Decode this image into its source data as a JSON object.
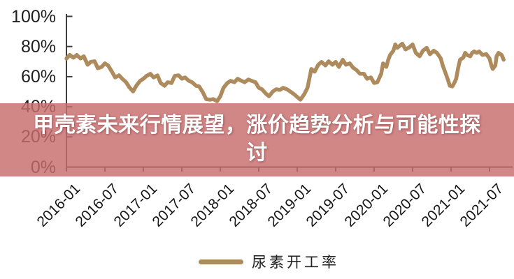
{
  "page": {
    "background": "#ffffff"
  },
  "banner": {
    "full_text": "甲壳素未来行情展望，涨价趋势分析与可能性探讨",
    "lines": [
      "甲壳素未来行情展望，涨价趋势分析与可能性探",
      "讨"
    ],
    "background_rgba": "rgba(200,109,109,0.82)",
    "text_color": "#ffffff"
  },
  "legend": {
    "label": "尿素开工率",
    "line_color": "#ae8b5d"
  },
  "colors": {
    "series_line": "#ae8b5d",
    "axis": "#3d3d3d",
    "tick_label": "#1f1f1f"
  },
  "chart_data": {
    "type": "line",
    "title": "",
    "xlabel": "",
    "ylabel": "",
    "grid": false,
    "legend_position": "bottom-center",
    "ylim": [
      0,
      100
    ],
    "y_tick_values": [
      0,
      20,
      40,
      60,
      80,
      100
    ],
    "y_tick_labels": [
      "0%",
      "20%",
      "40%",
      "60%",
      "80%",
      "100%"
    ],
    "x_tick_labels": [
      "2016-01",
      "2016-07",
      "2017-01",
      "2017-07",
      "2018-01",
      "2018-07",
      "2019-01",
      "2019-07",
      "2020-01",
      "2020-07",
      "2021-01",
      "2021-07"
    ],
    "x_unit": "months since 2016-01 (fractional)",
    "series": [
      {
        "name": "尿素开工率",
        "color": "#ae8b5d",
        "points": [
          [
            0,
            72
          ],
          [
            0.5,
            74.4
          ],
          [
            1.1,
            72.6
          ],
          [
            1.6,
            74.4
          ],
          [
            2.2,
            72.1
          ],
          [
            2.7,
            73.5
          ],
          [
            3.3,
            67.9
          ],
          [
            3.8,
            69.8
          ],
          [
            4.4,
            70.2
          ],
          [
            4.9,
            65.6
          ],
          [
            5.5,
            66.5
          ],
          [
            6,
            68.8
          ],
          [
            6.5,
            67.4
          ],
          [
            7.1,
            63.3
          ],
          [
            7.6,
            59.5
          ],
          [
            8.2,
            60.9
          ],
          [
            8.7,
            58.6
          ],
          [
            9.3,
            56.3
          ],
          [
            9.8,
            53
          ],
          [
            10.4,
            50.2
          ],
          [
            10.9,
            54
          ],
          [
            11.5,
            57.2
          ],
          [
            12,
            58.6
          ],
          [
            12.5,
            60.5
          ],
          [
            13.1,
            61.9
          ],
          [
            13.6,
            59.5
          ],
          [
            14.2,
            60.9
          ],
          [
            14.7,
            55.8
          ],
          [
            15.3,
            54
          ],
          [
            15.8,
            56.3
          ],
          [
            16.4,
            55.8
          ],
          [
            16.9,
            60.5
          ],
          [
            17.5,
            60.9
          ],
          [
            18,
            58.6
          ],
          [
            18.5,
            59.5
          ],
          [
            19.1,
            57.2
          ],
          [
            19.6,
            56.3
          ],
          [
            20.2,
            54
          ],
          [
            20.7,
            53.5
          ],
          [
            21.3,
            49.4
          ],
          [
            21.8,
            45.1
          ],
          [
            22.4,
            44.7
          ],
          [
            22.9,
            45.1
          ],
          [
            23.5,
            43.7
          ],
          [
            24,
            46.9
          ],
          [
            24.5,
            52.6
          ],
          [
            25.1,
            55.8
          ],
          [
            25.6,
            57.2
          ],
          [
            26.2,
            56.3
          ],
          [
            26.7,
            58.6
          ],
          [
            27.3,
            57.2
          ],
          [
            27.8,
            56.3
          ],
          [
            28.4,
            58.1
          ],
          [
            28.9,
            57.2
          ],
          [
            29.5,
            56.3
          ],
          [
            30,
            52.6
          ],
          [
            30.5,
            51.6
          ],
          [
            31.1,
            48.8
          ],
          [
            31.6,
            47
          ],
          [
            32.2,
            50.2
          ],
          [
            32.7,
            51.6
          ],
          [
            33.3,
            51.2
          ],
          [
            33.8,
            52.6
          ],
          [
            34.4,
            51.6
          ],
          [
            34.9,
            50.2
          ],
          [
            35.5,
            48.4
          ],
          [
            36,
            46.5
          ],
          [
            36.5,
            44.7
          ],
          [
            37.1,
            48.4
          ],
          [
            37.6,
            52.6
          ],
          [
            38.2,
            65.1
          ],
          [
            38.7,
            63.3
          ],
          [
            39.3,
            67.9
          ],
          [
            39.8,
            69.8
          ],
          [
            40.4,
            67.4
          ],
          [
            40.9,
            70.2
          ],
          [
            41.5,
            67.9
          ],
          [
            42,
            69.8
          ],
          [
            42.5,
            66.5
          ],
          [
            43.1,
            71.2
          ],
          [
            43.6,
            67.9
          ],
          [
            44.2,
            68.8
          ],
          [
            44.7,
            66
          ],
          [
            45.3,
            64.2
          ],
          [
            45.8,
            61.9
          ],
          [
            46.4,
            61.9
          ],
          [
            46.9,
            58.6
          ],
          [
            47.5,
            59.5
          ],
          [
            48,
            55.8
          ],
          [
            48.5,
            56.3
          ],
          [
            49.1,
            61.9
          ],
          [
            49.4,
            68.8
          ],
          [
            49.9,
            66.5
          ],
          [
            50.2,
            71.2
          ],
          [
            50.5,
            74.4
          ],
          [
            51,
            77.2
          ],
          [
            51.3,
            81.4
          ],
          [
            51.6,
            79.1
          ],
          [
            52,
            80.5
          ],
          [
            52.4,
            81.9
          ],
          [
            52.9,
            78.1
          ],
          [
            53.5,
            79.5
          ],
          [
            54,
            81.4
          ],
          [
            54.5,
            75.8
          ],
          [
            55.1,
            73.5
          ],
          [
            55.6,
            77.2
          ],
          [
            56.2,
            79.1
          ],
          [
            56.7,
            74.9
          ],
          [
            57.3,
            77.2
          ],
          [
            57.8,
            75.8
          ],
          [
            58.4,
            72.1
          ],
          [
            58.7,
            67.4
          ],
          [
            59.1,
            62.8
          ],
          [
            59.5,
            58.1
          ],
          [
            59.8,
            54
          ],
          [
            60.2,
            53.5
          ],
          [
            60.5,
            55.8
          ],
          [
            60.8,
            58.6
          ],
          [
            61.1,
            65.6
          ],
          [
            61.4,
            71.2
          ],
          [
            61.9,
            72.6
          ],
          [
            62.2,
            75.8
          ],
          [
            62.5,
            74.4
          ],
          [
            63,
            73.5
          ],
          [
            63.3,
            75.8
          ],
          [
            63.6,
            76.7
          ],
          [
            64,
            75.8
          ],
          [
            64.4,
            76.7
          ],
          [
            64.9,
            74.4
          ],
          [
            65.5,
            74.9
          ],
          [
            66,
            72.1
          ],
          [
            66.3,
            67.4
          ],
          [
            66.5,
            65.1
          ],
          [
            66.9,
            67.4
          ],
          [
            67.1,
            73.5
          ],
          [
            67.4,
            75.8
          ],
          [
            67.9,
            74.4
          ],
          [
            68.2,
            71.2
          ]
        ]
      }
    ]
  }
}
